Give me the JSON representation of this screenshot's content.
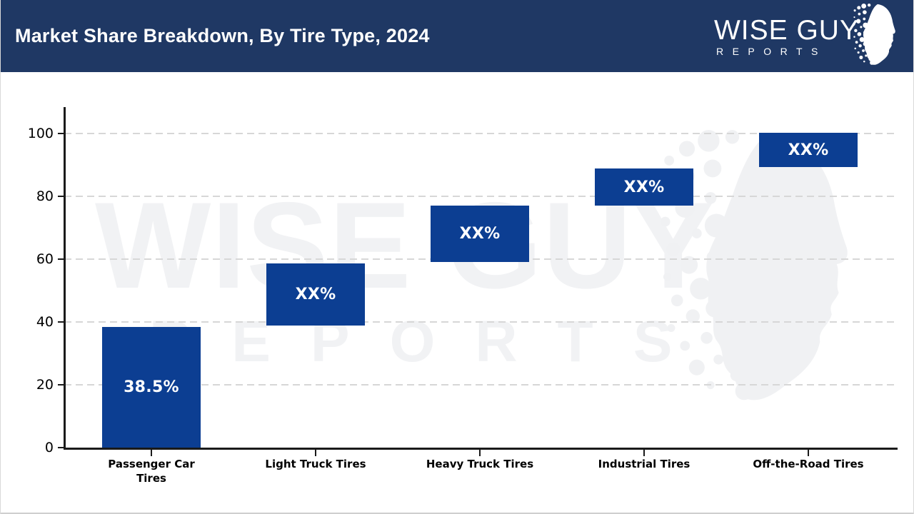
{
  "header": {
    "title": "Market Share Breakdown, By Tire Type, 2024",
    "logo": {
      "wordmark": "WISE GUY",
      "subtext": "REPORTS"
    }
  },
  "watermark": {
    "line1": "WISE GUY",
    "line2": "REPORTS"
  },
  "colors": {
    "header_bg": "#1f3864",
    "bar": "#0c3e92",
    "bar_label": "#ffffff",
    "gridline": "#d7d7d7",
    "axis": "#1a1a1a",
    "tick_text": "#000000",
    "watermark": "#f1f2f4"
  },
  "chart_data": {
    "type": "bar",
    "subtype": "waterfall",
    "title": "Market Share Breakdown, By Tire Type, 2024",
    "categories": [
      "Passenger Car\nTires",
      "Light Truck Tires",
      "Heavy Truck Tires",
      "Industrial Tires",
      "Off-the-Road Tires"
    ],
    "segments": [
      {
        "category": "Passenger Car Tires",
        "start": 0,
        "end": 38.5,
        "label": "38.5%"
      },
      {
        "category": "Light Truck Tires",
        "start": 38.9,
        "end": 58.6,
        "label": "XX%"
      },
      {
        "category": "Heavy Truck Tires",
        "start": 59.1,
        "end": 77.0,
        "label": "XX%"
      },
      {
        "category": "Industrial Tires",
        "start": 77.0,
        "end": 88.9,
        "label": "XX%"
      },
      {
        "category": "Off-the-Road Tires",
        "start": 89.3,
        "end": 100.2,
        "label": "XX%"
      }
    ],
    "xlabel": "",
    "ylabel": "",
    "ylim": [
      0,
      105
    ],
    "yticks": [
      0,
      20,
      40,
      60,
      80,
      100
    ],
    "grid": "horizontal-dashed",
    "legend": "none"
  }
}
